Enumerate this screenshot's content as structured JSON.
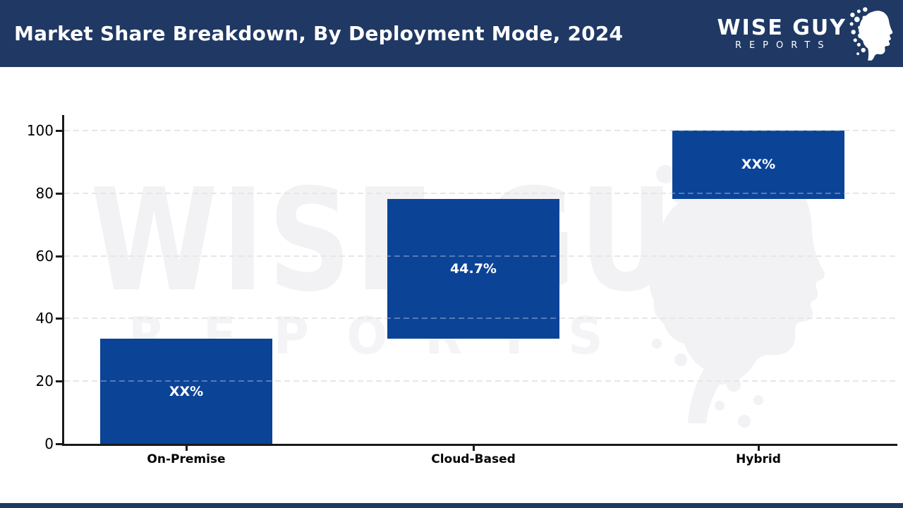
{
  "header": {
    "title": "Market Share Breakdown, By Deployment Mode, 2024",
    "logo": {
      "line1": "WISE GUY",
      "line2": "REPORTS"
    }
  },
  "watermark": {
    "line1": "WISE GUY",
    "line2": "REPORTS"
  },
  "chart_data": {
    "type": "bar",
    "subtype": "waterfall-stacked-breakdown",
    "title": "Market Share Breakdown, By Deployment Mode, 2024",
    "categories": [
      "On-Premise",
      "Cloud-Based",
      "Hybrid"
    ],
    "segments": [
      {
        "category": "On-Premise",
        "start": 0,
        "end": 33.5,
        "value_label": "XX%"
      },
      {
        "category": "Cloud-Based",
        "start": 33.5,
        "end": 78.2,
        "value_label": "44.7%"
      },
      {
        "category": "Hybrid",
        "start": 78.2,
        "end": 100,
        "value_label": "XX%"
      }
    ],
    "xlabel": "",
    "ylabel": "",
    "yticks": [
      0,
      20,
      40,
      60,
      80,
      100
    ],
    "ylim": [
      0,
      105
    ],
    "grid": "horizontal-dashed",
    "legend": "none"
  },
  "colors": {
    "header_bg": "#1F3864",
    "bottom_stripe": "#1F3864",
    "bar": "#0B4397",
    "bar_label": "#ffffff",
    "gridline": "#dcdcdc",
    "axis": "#1a1a1a",
    "watermark": "#f2f2f4"
  }
}
